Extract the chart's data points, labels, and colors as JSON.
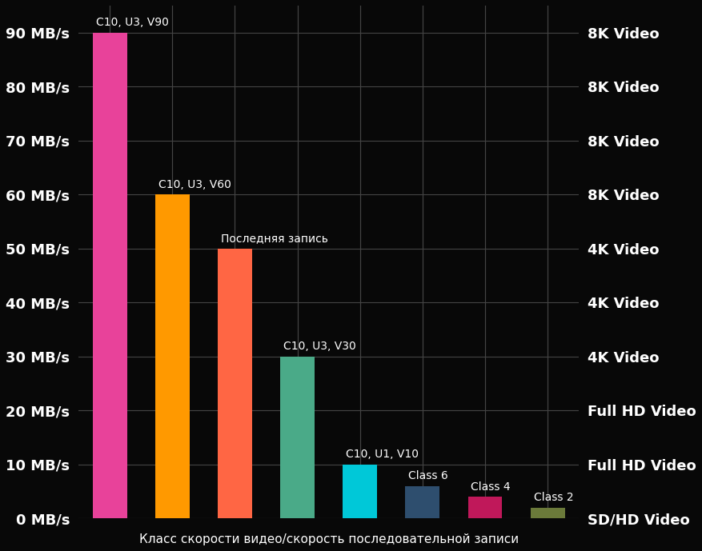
{
  "background_color": "#080808",
  "bars": [
    {
      "label": "C10, U3, V90",
      "value": 90,
      "color": "#e8429a",
      "x": 0
    },
    {
      "label": "C10, U3, V60",
      "value": 60,
      "color": "#ff9900",
      "x": 1
    },
    {
      "label": "Последняя запись",
      "value": 50,
      "color": "#ff6644",
      "x": 2
    },
    {
      "label": "C10, U3, V30",
      "value": 30,
      "color": "#4aaa88",
      "x": 3
    },
    {
      "label": "C10, U1, V10",
      "value": 10,
      "color": "#00c8d8",
      "x": 4
    },
    {
      "label": "Class 6",
      "value": 6,
      "color": "#2e4e6e",
      "x": 5
    },
    {
      "label": "Class 4",
      "value": 4,
      "color": "#c0185a",
      "x": 6
    },
    {
      "label": "Class 2",
      "value": 2,
      "color": "#6b7a3a",
      "x": 7
    }
  ],
  "yticks": [
    0,
    10,
    20,
    30,
    40,
    50,
    60,
    70,
    80,
    90
  ],
  "ytick_labels": [
    "0 MB/s",
    "10 MB/s",
    "20 MB/s",
    "30 MB/s",
    "40 MB/s",
    "50 MB/s",
    "60 MB/s",
    "70 MB/s",
    "80 MB/s",
    "90 MB/s"
  ],
  "right_labels": [
    {
      "y": 90,
      "text": "8K Video"
    },
    {
      "y": 80,
      "text": "8K Video"
    },
    {
      "y": 70,
      "text": "8K Video"
    },
    {
      "y": 60,
      "text": "8K Video"
    },
    {
      "y": 50,
      "text": "4K Video"
    },
    {
      "y": 40,
      "text": "4K Video"
    },
    {
      "y": 30,
      "text": "4K Video"
    },
    {
      "y": 20,
      "text": "Full HD Video"
    },
    {
      "y": 10,
      "text": "Full HD Video"
    },
    {
      "y": 0,
      "text": "SD/HD Video"
    }
  ],
  "xlabel": "Класс скорости видео/скорость последовательной записи",
  "ylim": [
    0,
    95
  ],
  "text_color": "#ffffff",
  "grid_color": "#444444",
  "bar_width": 0.55,
  "figsize": [
    8.77,
    6.89
  ],
  "dpi": 100,
  "label_fontsize": 10,
  "tick_fontsize": 13,
  "xlabel_fontsize": 11
}
